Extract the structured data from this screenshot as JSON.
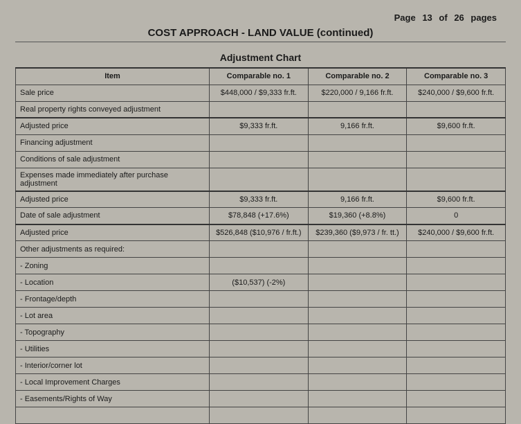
{
  "pageInfo": {
    "prefix": "Page",
    "num": "13",
    "of": "of",
    "total": "26",
    "suffix": "pages"
  },
  "title": "COST APPROACH - LAND VALUE (continued)",
  "subtitle": "Adjustment Chart",
  "columns": {
    "item": "Item",
    "c1": "Comparable no. 1",
    "c2": "Comparable no. 2",
    "c3": "Comparable no. 3"
  },
  "rows": [
    {
      "label": "Sale price",
      "c1": "$448,000 / $9,333 fr.ft.",
      "c2": "$220,000 / 9,166 fr.ft.",
      "c3": "$240,000 / $9,600 fr.ft."
    },
    {
      "label": "Real property rights conveyed adjustment",
      "c1": "",
      "c2": "",
      "c3": ""
    },
    {
      "label": "Adjusted price",
      "c1": "$9,333 fr.ft.",
      "c2": "9,166 fr.ft.",
      "c3": "$9,600 fr.ft.",
      "thick": true
    },
    {
      "label": "Financing adjustment",
      "c1": "",
      "c2": "",
      "c3": ""
    },
    {
      "label": "Conditions of sale adjustment",
      "c1": "",
      "c2": "",
      "c3": ""
    },
    {
      "label": "Expenses made immediately after purchase adjustment",
      "c1": "",
      "c2": "",
      "c3": ""
    },
    {
      "label": "Adjusted price",
      "c1": "$9,333 fr.ft.",
      "c2": "9,166 fr.ft.",
      "c3": "$9,600 fr.ft.",
      "thick": true
    },
    {
      "label": "Date of sale adjustment",
      "c1": "$78,848 (+17.6%)",
      "c2": "$19,360 (+8.8%)",
      "c3": "0"
    },
    {
      "label": "Adjusted price",
      "c1": "$526,848 ($10,976 / fr.ft.)",
      "c2": "$239,360 ($9,973 / fr. tt.)",
      "c3": "$240,000 / $9,600 fr.ft.",
      "thick": true
    },
    {
      "label": "Other adjustments as required:",
      "c1": "",
      "c2": "",
      "c3": ""
    },
    {
      "label": "- Zoning",
      "c1": "",
      "c2": "",
      "c3": ""
    },
    {
      "label": "- Location",
      "c1": "($10,537) (-2%)",
      "c2": "",
      "c3": ""
    },
    {
      "label": "- Frontage/depth",
      "c1": "",
      "c2": "",
      "c3": ""
    },
    {
      "label": "- Lot area",
      "c1": "",
      "c2": "",
      "c3": ""
    },
    {
      "label": "- Topography",
      "c1": "",
      "c2": "",
      "c3": ""
    },
    {
      "label": "- Utilities",
      "c1": "",
      "c2": "",
      "c3": ""
    },
    {
      "label": "- Interior/corner lot",
      "c1": "",
      "c2": "",
      "c3": ""
    },
    {
      "label": "- Local Improvement Charges",
      "c1": "",
      "c2": "",
      "c3": ""
    },
    {
      "label": "- Easements/Rights of Way",
      "c1": "",
      "c2": "",
      "c3": ""
    },
    {
      "label": "",
      "c1": "",
      "c2": "",
      "c3": ""
    }
  ]
}
